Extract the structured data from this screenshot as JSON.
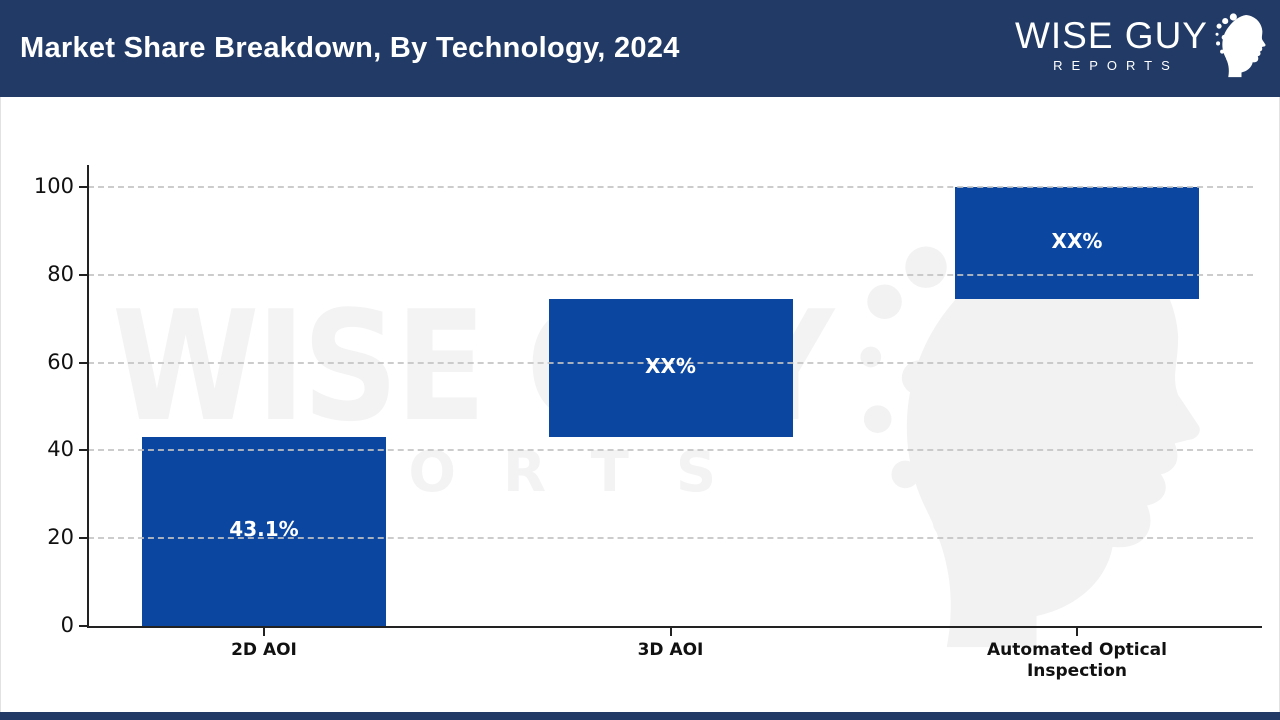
{
  "header": {
    "title": "Market Share Breakdown, By Technology, 2024",
    "bg_color": "#213a66"
  },
  "brand": {
    "line1": "WISE GUY",
    "line2": "REPORTS"
  },
  "watermark": {
    "line1": "WISE GUY",
    "line2": "REPORTS"
  },
  "chart_data": {
    "type": "bar",
    "subtype": "waterfall-range",
    "title": "Market Share Breakdown, By Technology, 2024",
    "categories": [
      "2D AOI",
      "3D AOI",
      "Automated Optical Inspection"
    ],
    "series": [
      {
        "name": "Market Share (%)",
        "ranges": [
          [
            0,
            43.1
          ],
          [
            43.1,
            74.5
          ],
          [
            74.5,
            100
          ]
        ]
      }
    ],
    "bar_labels": [
      "43.1%",
      "XX%",
      "XX%"
    ],
    "bar_color": "#0b47a0",
    "bar_label_color": "#ffffff",
    "ylim": [
      0,
      100
    ],
    "yticks": [
      0,
      20,
      40,
      60,
      80,
      100
    ],
    "xlabel": "",
    "ylabel": "",
    "grid": "horizontal-dashed",
    "legend": "none"
  }
}
